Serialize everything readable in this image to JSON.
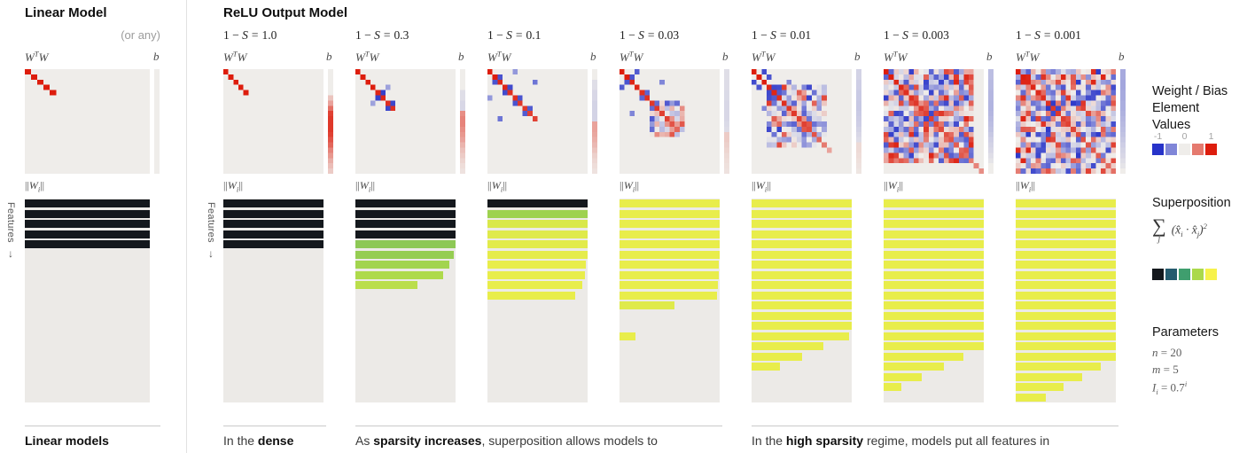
{
  "ui": {
    "linear": {
      "title": "Linear Model",
      "subtitle": "(or any)",
      "caption": [
        {
          "t": "Linear models",
          "b": true
        }
      ]
    },
    "relu": {
      "title": "ReLU Output Model",
      "caption_groups": [
        {
          "col": 0,
          "span": 1,
          "segments": [
            {
              "t": "In the ",
              "b": false
            },
            {
              "t": "dense",
              "b": true
            }
          ]
        },
        {
          "col": 1,
          "span": 3,
          "segments": [
            {
              "t": "As ",
              "b": false
            },
            {
              "t": "sparsity increases",
              "b": true
            },
            {
              "t": ", superposition allows models to",
              "b": false
            }
          ]
        },
        {
          "col": 4,
          "span": 3,
          "segments": [
            {
              "t": "In the ",
              "b": false
            },
            {
              "t": "high sparsity",
              "b": true
            },
            {
              "t": " regime, models put all features in",
              "b": false
            }
          ]
        }
      ]
    },
    "math": {
      "wtw": {
        "p1": "W",
        "sup": "T",
        "p2": "W"
      },
      "b": "b",
      "wi": {
        "p1": "||",
        "p2": "W",
        "sub": "i",
        "p3": "||"
      },
      "features": "Features",
      "arrow": "↓",
      "sparsity_pre": "1 − ",
      "sparsity_var": "S",
      "sparsity_eq": "="
    }
  },
  "legend": {
    "weight": {
      "title_lines": [
        "Weight / Bias",
        "Element",
        "Values"
      ],
      "ticks": [
        "-1",
        "0",
        "1"
      ],
      "tick_pos": [
        0,
        2,
        4
      ],
      "values": [
        -1,
        -0.5,
        0,
        0.5,
        1
      ]
    },
    "superposition": {
      "title": "Superposition",
      "ticks": [
        "0",
        "1"
      ],
      "tick_pos": [
        0,
        4
      ],
      "values": [
        0,
        0.25,
        0.5,
        0.75,
        1
      ],
      "formula": {
        "sigma": "∑",
        "sigma_sub": "j",
        "open": "(",
        "x1": "x̂",
        "sub1": "i",
        "dot": "·",
        "x2": "x̂",
        "sub2": "j",
        "close": ")",
        "power": "2"
      }
    },
    "parameters": {
      "title": "Parameters",
      "items": [
        {
          "var": "n",
          "sub": "",
          "eq": "=",
          "val": "20",
          "val_sup": ""
        },
        {
          "var": "m",
          "sub": "",
          "eq": "=",
          "val": "5",
          "val_sup": ""
        },
        {
          "var": "I",
          "sub": "i",
          "eq": "=",
          "val": "0.7",
          "val_sup": "i"
        }
      ]
    }
  },
  "colors": {
    "cell_zero": "#efedea",
    "pos": "#dd1d0d",
    "neg": "#2733c9",
    "chart_bg": "#eceae7",
    "sup_stops": [
      "#14181d",
      "#255b6e",
      "#3f9e6e",
      "#abd94b",
      "#f7f24b"
    ],
    "rule": "#c9c9c9"
  },
  "chart_data": {
    "type": "heatmap",
    "n_features": 20,
    "row_axis_label": "Features",
    "panels": [
      {
        "name": "linear",
        "sparsity": null,
        "diag": [
          1,
          1,
          1,
          1,
          1,
          0,
          0,
          0,
          0,
          0,
          0,
          0,
          0,
          0,
          0,
          0,
          0,
          0,
          0,
          0
        ],
        "pairs": [],
        "noise": [],
        "bias": [
          0,
          0,
          0,
          0,
          0,
          0,
          0,
          0,
          0,
          0,
          0,
          0,
          0,
          0,
          0,
          0,
          0,
          0,
          0,
          0
        ],
        "bar_norm": [
          1,
          1,
          1,
          1,
          1,
          0,
          0,
          0,
          0,
          0,
          0,
          0,
          0,
          0,
          0,
          0,
          0,
          0,
          0,
          0
        ],
        "bar_sup": [
          0,
          0,
          0,
          0,
          0,
          0,
          0,
          0,
          0,
          0,
          0,
          0,
          0,
          0,
          0,
          0,
          0,
          0,
          0,
          0
        ]
      },
      {
        "name": "relu-dense",
        "sparsity": "1.0",
        "diag": [
          1,
          1,
          1,
          1,
          1,
          0,
          0,
          0,
          0,
          0,
          0,
          0,
          0,
          0,
          0,
          0,
          0,
          0,
          0,
          0
        ],
        "pairs": [],
        "noise": [],
        "bias": [
          0,
          0,
          0,
          0,
          0,
          0.15,
          0.3,
          0.55,
          0.8,
          0.85,
          0.85,
          0.85,
          0.8,
          0.7,
          0.6,
          0.45,
          0.35,
          0.25,
          0.18,
          0.12
        ],
        "bar_norm": [
          1,
          1,
          1,
          1,
          1,
          0,
          0,
          0,
          0,
          0,
          0,
          0,
          0,
          0,
          0,
          0,
          0,
          0,
          0,
          0
        ],
        "bar_sup": [
          0,
          0,
          0,
          0,
          0,
          0,
          0,
          0,
          0,
          0,
          0,
          0,
          0,
          0,
          0,
          0,
          0,
          0,
          0,
          0
        ]
      },
      {
        "name": "relu-0.3",
        "sparsity": "0.3",
        "diag": [
          1,
          1,
          1,
          1,
          0.95,
          0.95,
          0.9,
          0.9,
          0,
          0,
          0,
          0,
          0,
          0,
          0,
          0,
          0,
          0,
          0,
          0
        ],
        "pairs": [
          [
            4,
            5,
            -0.92
          ],
          [
            6,
            7,
            -0.88
          ],
          [
            3,
            6,
            -0.35
          ]
        ],
        "noise": [],
        "bias": [
          0,
          0,
          0,
          0,
          -0.05,
          -0.05,
          -0.08,
          -0.08,
          0.4,
          0.45,
          0.45,
          0.4,
          0.35,
          0.3,
          0.22,
          0.16,
          0.12,
          0.08,
          0.05,
          0.03
        ],
        "bar_norm": [
          1,
          1,
          1,
          1,
          1,
          0.98,
          0.94,
          0.88,
          0.62,
          0,
          0,
          0,
          0,
          0,
          0,
          0,
          0,
          0,
          0,
          0
        ],
        "bar_sup": [
          0,
          0,
          0,
          0,
          0.68,
          0.7,
          0.73,
          0.76,
          0.8,
          0,
          0,
          0,
          0,
          0,
          0,
          0,
          0,
          0,
          0,
          0
        ]
      },
      {
        "name": "relu-0.1",
        "sparsity": "0.1",
        "diag": [
          1,
          1,
          0.95,
          0.95,
          0.9,
          0.9,
          0.85,
          0.85,
          0.8,
          0.8,
          0,
          0,
          0,
          0,
          0,
          0,
          0,
          0,
          0,
          0
        ],
        "pairs": [
          [
            1,
            2,
            -0.8
          ],
          [
            3,
            4,
            -0.85
          ],
          [
            5,
            6,
            -0.8
          ],
          [
            7,
            8,
            -0.75
          ],
          [
            2,
            9,
            -0.6
          ],
          [
            0,
            5,
            -0.4
          ]
        ],
        "noise": [],
        "bias": [
          0,
          0,
          -0.05,
          -0.05,
          -0.08,
          -0.08,
          -0.1,
          -0.1,
          -0.1,
          -0.1,
          0.3,
          0.3,
          0.28,
          0.24,
          0.2,
          0.15,
          0.1,
          0.07,
          0.05,
          0.03
        ],
        "bar_norm": [
          1,
          1,
          1,
          1,
          1,
          1,
          0.98,
          0.97,
          0.95,
          0.88,
          0,
          0,
          0,
          0,
          0,
          0,
          0,
          0,
          0,
          0
        ],
        "bar_sup": [
          0,
          0.72,
          0.9,
          0.92,
          0.93,
          0.94,
          0.95,
          0.95,
          0.95,
          0.95,
          0,
          0,
          0,
          0,
          0,
          0,
          0,
          0,
          0,
          0
        ]
      },
      {
        "name": "relu-0.03",
        "sparsity": "0.03",
        "diag": [
          1,
          1,
          0.95,
          0.95,
          0.9,
          0.9,
          0.85,
          0.85,
          0.8,
          0.8,
          0.7,
          0.6,
          0,
          0,
          0,
          0,
          0,
          0,
          0,
          0
        ],
        "pairs": [
          [
            0,
            3,
            -0.75
          ],
          [
            1,
            2,
            -0.8
          ],
          [
            4,
            5,
            -0.7
          ],
          [
            6,
            7,
            -0.65
          ],
          [
            2,
            8,
            -0.5
          ]
        ],
        "noise": [
          {
            "r0": 6,
            "r1": 12,
            "c0": 6,
            "c1": 12,
            "amp": 0.5,
            "seed": 4
          }
        ],
        "bias": [
          -0.05,
          -0.05,
          -0.06,
          -0.06,
          -0.07,
          -0.07,
          -0.08,
          -0.08,
          -0.08,
          -0.08,
          -0.07,
          -0.06,
          0.12,
          0.12,
          0.1,
          0.08,
          0.06,
          0.05,
          0.04,
          0.03
        ],
        "bar_norm": [
          1,
          1,
          1,
          1,
          1,
          1,
          0.99,
          0.99,
          0.98,
          0.97,
          0.55,
          0,
          0,
          0.16,
          0,
          0,
          0,
          0,
          0,
          0
        ],
        "bar_sup": [
          0.95,
          0.95,
          0.95,
          0.95,
          0.95,
          0.95,
          0.95,
          0.95,
          0.95,
          0.95,
          0.92,
          0,
          0,
          0.95,
          0,
          0,
          0,
          0,
          0,
          0
        ]
      },
      {
        "name": "relu-0.01",
        "sparsity": "0.01",
        "diag": [
          1,
          1,
          1,
          0.95,
          0.95,
          0.9,
          0.9,
          0.85,
          0.85,
          0.8,
          0.8,
          0.75,
          0.7,
          0.6,
          0.5,
          0.3,
          0,
          0,
          0,
          0
        ],
        "pairs": [
          [
            0,
            2,
            -0.85
          ],
          [
            1,
            3,
            -0.8
          ],
          [
            4,
            5,
            -0.75
          ],
          [
            6,
            8,
            -0.7
          ],
          [
            2,
            7,
            -0.5
          ],
          [
            9,
            11,
            -0.6
          ]
        ],
        "noise": [
          {
            "r0": 3,
            "r1": 14,
            "c0": 3,
            "c1": 14,
            "amp": 0.55,
            "seed": 5
          }
        ],
        "bias": [
          -0.1,
          -0.1,
          -0.12,
          -0.12,
          -0.14,
          -0.14,
          -0.15,
          -0.15,
          -0.14,
          -0.13,
          -0.12,
          -0.1,
          -0.08,
          -0.06,
          0.06,
          0.06,
          0.05,
          0.04,
          0.03,
          0.02
        ],
        "bar_norm": [
          1,
          1,
          1,
          1,
          1,
          1,
          1,
          1,
          1,
          1,
          1,
          1,
          1,
          0.97,
          0.72,
          0.5,
          0.28,
          0,
          0,
          0
        ],
        "bar_sup": [
          0.95,
          0.95,
          0.95,
          0.95,
          0.95,
          0.95,
          0.95,
          0.95,
          0.95,
          0.95,
          0.95,
          0.95,
          0.95,
          0.95,
          0.95,
          0.95,
          0.95,
          0,
          0,
          0
        ]
      },
      {
        "name": "relu-0.003",
        "sparsity": "0.003",
        "diag": [
          1,
          1,
          0.95,
          0.95,
          0.9,
          0.9,
          0.85,
          0.85,
          0.8,
          0.8,
          0.78,
          0.75,
          0.72,
          0.7,
          0.65,
          0.6,
          0.55,
          0.5,
          0.45,
          0.4
        ],
        "pairs": [
          [
            0,
            1,
            -0.7
          ],
          [
            2,
            4,
            -0.75
          ],
          [
            3,
            5,
            -0.7
          ],
          [
            6,
            9,
            -0.65
          ],
          [
            7,
            10,
            -0.6
          ]
        ],
        "noise": [
          {
            "r0": 0,
            "r1": 17,
            "c0": 0,
            "c1": 17,
            "amp": 0.6,
            "seed": 6
          }
        ],
        "bias": [
          -0.2,
          -0.2,
          -0.22,
          -0.22,
          -0.24,
          -0.24,
          -0.25,
          -0.25,
          -0.24,
          -0.22,
          -0.2,
          -0.18,
          -0.15,
          -0.12,
          -0.1,
          -0.08,
          -0.05,
          -0.03,
          0,
          0
        ],
        "bar_norm": [
          1,
          1,
          1,
          1,
          1,
          1,
          1,
          1,
          1,
          1,
          1,
          1,
          1,
          1,
          1,
          0.8,
          0.6,
          0.38,
          0.18,
          0
        ],
        "bar_sup": [
          0.95,
          0.95,
          0.95,
          0.95,
          0.95,
          0.95,
          0.95,
          0.95,
          0.95,
          0.95,
          0.95,
          0.95,
          0.95,
          0.95,
          0.95,
          0.95,
          0.95,
          0.95,
          0.95,
          0
        ]
      },
      {
        "name": "relu-0.001",
        "sparsity": "0.001",
        "diag": [
          1,
          1,
          0.95,
          0.95,
          0.92,
          0.9,
          0.88,
          0.85,
          0.85,
          0.82,
          0.8,
          0.78,
          0.75,
          0.72,
          0.7,
          0.68,
          0.65,
          0.6,
          0.58,
          0.55
        ],
        "pairs": [
          [
            0,
            2,
            -0.7
          ],
          [
            1,
            4,
            -0.65
          ],
          [
            3,
            6,
            -0.6
          ],
          [
            5,
            9,
            -0.6
          ]
        ],
        "noise": [
          {
            "r0": 0,
            "r1": 19,
            "c0": 0,
            "c1": 19,
            "amp": 0.65,
            "seed": 7
          }
        ],
        "bias": [
          -0.3,
          -0.3,
          -0.32,
          -0.32,
          -0.3,
          -0.3,
          -0.28,
          -0.28,
          -0.26,
          -0.24,
          -0.22,
          -0.2,
          -0.18,
          -0.15,
          -0.12,
          -0.1,
          -0.08,
          -0.05,
          -0.03,
          0
        ],
        "bar_norm": [
          1,
          1,
          1,
          1,
          1,
          1,
          1,
          1,
          1,
          1,
          1,
          1,
          1,
          1,
          1,
          1,
          0.85,
          0.66,
          0.48,
          0.3
        ],
        "bar_sup": [
          0.95,
          0.95,
          0.95,
          0.95,
          0.95,
          0.95,
          0.95,
          0.95,
          0.95,
          0.95,
          0.95,
          0.95,
          0.95,
          0.95,
          0.95,
          0.95,
          0.95,
          0.95,
          0.95,
          0.95
        ]
      }
    ]
  }
}
